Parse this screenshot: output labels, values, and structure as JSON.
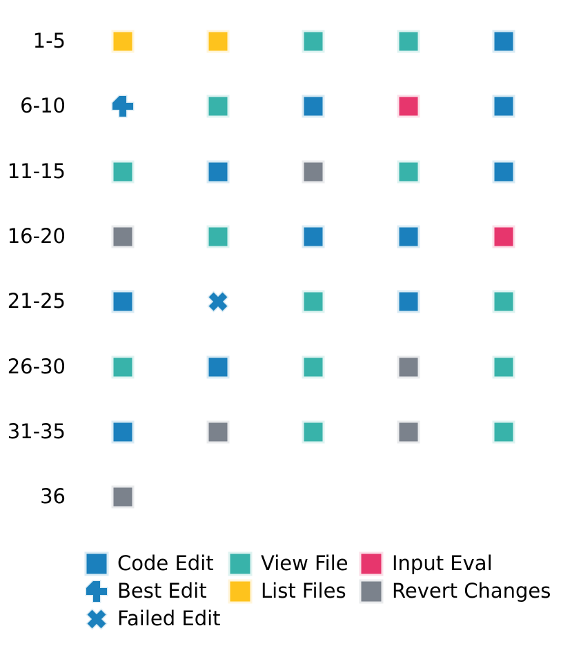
{
  "chart_data": {
    "type": "scatter",
    "title": "",
    "xlabel": "",
    "ylabel": "",
    "grid": false,
    "background": "#ffffff",
    "legend_position": "bottom",
    "row_labels": [
      "1-5",
      "6-10",
      "11-15",
      "16-20",
      "21-25",
      "26-30",
      "31-35",
      "36"
    ],
    "rows": [
      [
        "list_files",
        "list_files",
        "view_file",
        "view_file",
        "code_edit"
      ],
      [
        "best_edit",
        "view_file",
        "code_edit",
        "input_eval",
        "code_edit"
      ],
      [
        "view_file",
        "code_edit",
        "revert_changes",
        "view_file",
        "code_edit"
      ],
      [
        "revert_changes",
        "view_file",
        "code_edit",
        "code_edit",
        "input_eval"
      ],
      [
        "code_edit",
        "failed_edit",
        "view_file",
        "code_edit",
        "view_file"
      ],
      [
        "view_file",
        "code_edit",
        "view_file",
        "revert_changes",
        "view_file"
      ],
      [
        "code_edit",
        "revert_changes",
        "view_file",
        "revert_changes",
        "view_file"
      ],
      [
        "revert_changes"
      ]
    ],
    "marker_types": {
      "code_edit": {
        "label": "Code Edit",
        "marker": "square",
        "color": "#1b80bd"
      },
      "view_file": {
        "label": "View File",
        "marker": "square",
        "color": "#38b3aa"
      },
      "input_eval": {
        "label": "Input Eval",
        "marker": "square",
        "color": "#e7366d"
      },
      "best_edit": {
        "label": "Best Edit",
        "marker": "plus",
        "color": "#1b80bd"
      },
      "list_files": {
        "label": "List Files",
        "marker": "square",
        "color": "#fec31d"
      },
      "revert_changes": {
        "label": "Revert Changes",
        "marker": "square",
        "color": "#7b828c"
      },
      "failed_edit": {
        "label": "Failed Edit",
        "marker": "x",
        "color": "#1b80bd"
      }
    },
    "legend_rows": [
      [
        "code_edit",
        "view_file",
        "input_eval"
      ],
      [
        "best_edit",
        "list_files",
        "revert_changes"
      ],
      [
        "failed_edit"
      ]
    ],
    "text_color": "#000000"
  }
}
